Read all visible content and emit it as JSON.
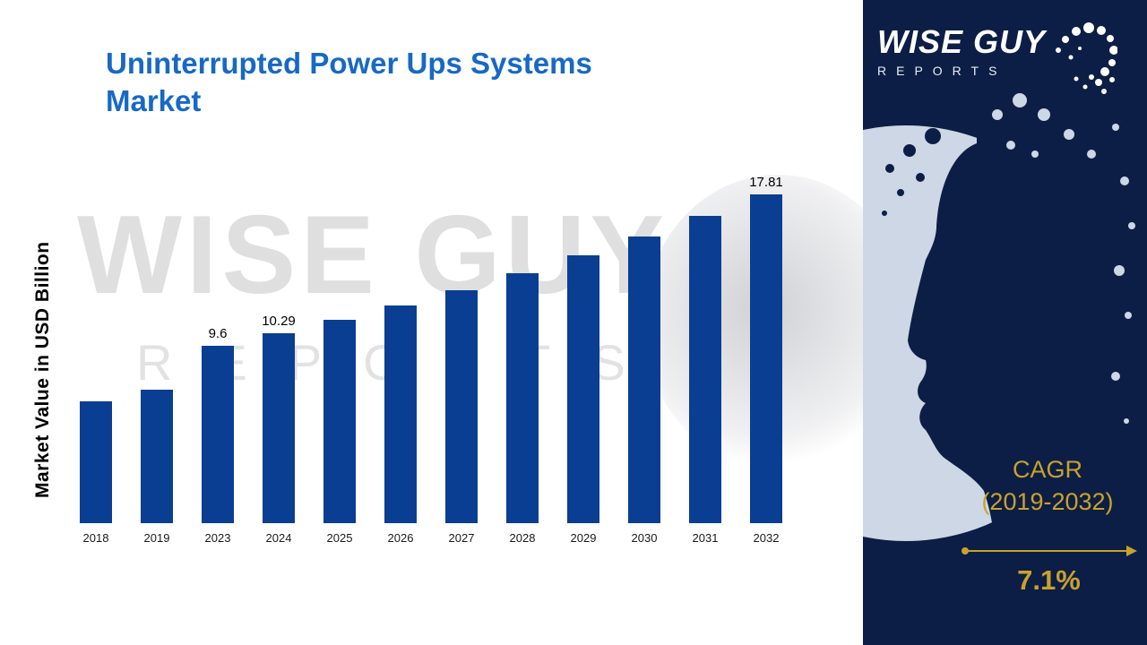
{
  "title": "Uninterrupted Power Ups Systems Market",
  "watermark": {
    "line1": "WISE GUY",
    "line2": "REPORTS"
  },
  "chart_data": {
    "type": "bar",
    "title": "Uninterrupted Power Ups Systems Market",
    "xlabel": "",
    "ylabel": "Market Value in USD Billion",
    "categories": [
      "2018",
      "2019",
      "2023",
      "2024",
      "2025",
      "2026",
      "2027",
      "2028",
      "2029",
      "2030",
      "2031",
      "2032"
    ],
    "values": [
      6.6,
      7.25,
      9.6,
      10.29,
      11.02,
      11.8,
      12.64,
      13.54,
      14.5,
      15.53,
      16.63,
      17.81
    ],
    "data_labels": {
      "2023": "9.6",
      "2024": "10.29",
      "2032": "17.81"
    },
    "bar_color": "#0a3e92",
    "ylim": [
      0,
      19
    ],
    "grid": false,
    "legend": false
  },
  "brand": {
    "logo_line1": "WISE GUY",
    "logo_line2": "REPORTS",
    "cagr_label": "CAGR",
    "cagr_range": "(2019-2032)",
    "cagr_value": "7.1%",
    "panel_color": "#0c1e45",
    "accent_gold": "#c9a22b"
  }
}
